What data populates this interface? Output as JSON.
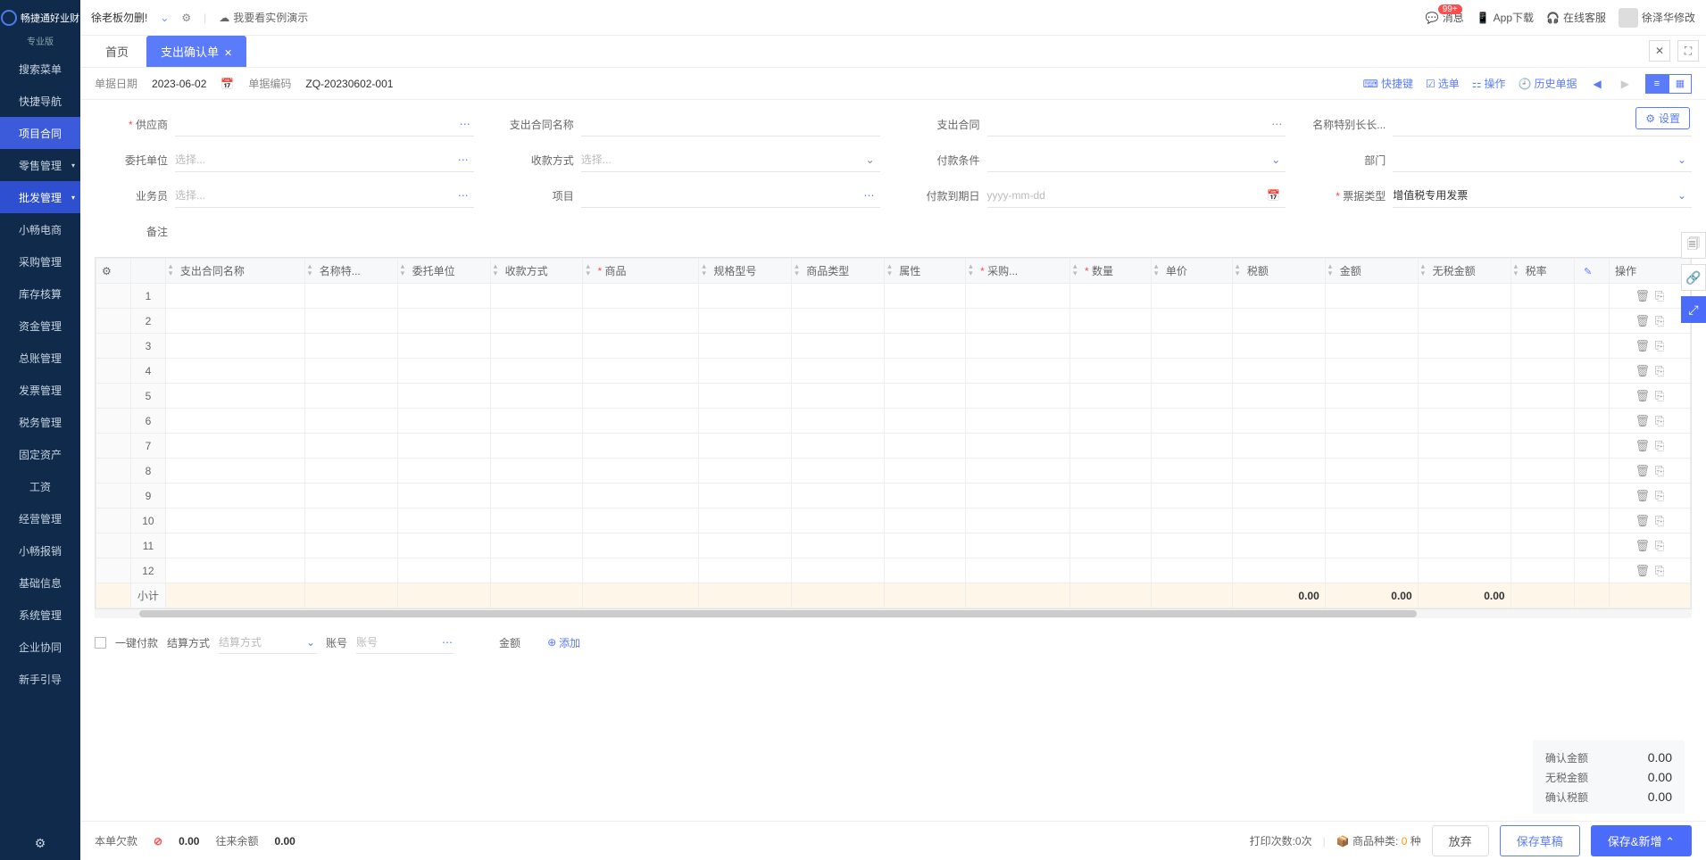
{
  "brand": {
    "name": "畅捷通好业财",
    "edition": "专业版"
  },
  "topbar": {
    "leftText": "徐老板勿删!",
    "demo": "我要看实例演示",
    "msg": "消息",
    "msgBadge": "99+",
    "app": "App下载",
    "service": "在线客服",
    "user": "徐泽华修改"
  },
  "sideMenu": [
    {
      "label": "搜索菜单"
    },
    {
      "label": "快捷导航"
    },
    {
      "label": "项目合同",
      "active": true
    },
    {
      "label": "零售管理",
      "arrow": true
    },
    {
      "label": "批发管理",
      "arrow": true,
      "highlight": true
    },
    {
      "label": "小畅电商"
    },
    {
      "label": "采购管理"
    },
    {
      "label": "库存核算"
    },
    {
      "label": "资金管理"
    },
    {
      "label": "总账管理"
    },
    {
      "label": "发票管理"
    },
    {
      "label": "税务管理"
    },
    {
      "label": "固定资产"
    },
    {
      "label": "工资"
    },
    {
      "label": "经营管理"
    },
    {
      "label": "小畅报销"
    },
    {
      "label": "基础信息"
    },
    {
      "label": "系统管理"
    },
    {
      "label": "企业协同"
    },
    {
      "label": "新手引导"
    }
  ],
  "tabs": {
    "home": "首页",
    "current": "支出确认单"
  },
  "docHeader": {
    "dateLabel": "单据日期",
    "dateValue": "2023-06-02",
    "codeLabel": "单据编码",
    "codeValue": "ZQ-20230602-001",
    "shortcut": "快捷键",
    "select": "选单",
    "operate": "操作",
    "history": "历史单据"
  },
  "settingsBtn": "设置",
  "form": {
    "supplier": "供应商",
    "contractName": "支出合同名称",
    "contract": "支出合同",
    "longName": "名称特别长长...",
    "entrust": "委托单位",
    "entrustPh": "选择...",
    "payMethod": "收款方式",
    "payMethodPh": "选择...",
    "payCond": "付款条件",
    "dept": "部门",
    "salesman": "业务员",
    "salesmanPh": "选择...",
    "project": "项目",
    "dueDate": "付款到期日",
    "dueDatePh": "yyyy-mm-dd",
    "invoiceType": "票据类型",
    "invoiceTypeVal": "增值税专用发票",
    "remark": "备注"
  },
  "table": {
    "headers": [
      "支出合同名称",
      "名称特...",
      "委托单位",
      "收款方式",
      "商品",
      "规格型号",
      "商品类型",
      "属性",
      "采购...",
      "数量",
      "单价",
      "税额",
      "金额",
      "无税金额",
      "税率"
    ],
    "reqHeaders": {
      "4": true,
      "8": true,
      "9": true
    },
    "opHeader": "操作",
    "rows": 12,
    "subtotalLabel": "小计",
    "subtotals": {
      "tax": "0.00",
      "amount": "0.00",
      "notax": "0.00"
    }
  },
  "payRow": {
    "oneClick": "一键付款",
    "settleLabel": "结算方式",
    "settlePh": "结算方式",
    "acctLabel": "账号",
    "acctPh": "账号",
    "amountLabel": "金额",
    "add": "添加"
  },
  "summary": {
    "confirmAmt": {
      "label": "确认金额",
      "value": "0.00"
    },
    "notaxAmt": {
      "label": "无税金额",
      "value": "0.00"
    },
    "confirmTax": {
      "label": "确认税额",
      "value": "0.00"
    }
  },
  "footer": {
    "oweLabel": "本单欠款",
    "oweVal": "0.00",
    "balLabel": "往来余额",
    "balVal": "0.00",
    "printLabel": "打印次数:0次",
    "skuLabel": "商品种类:",
    "skuCount": "0",
    "skuUnit": " 种",
    "discard": "放弃",
    "draft": "保存草稿",
    "save": "保存&新增"
  }
}
